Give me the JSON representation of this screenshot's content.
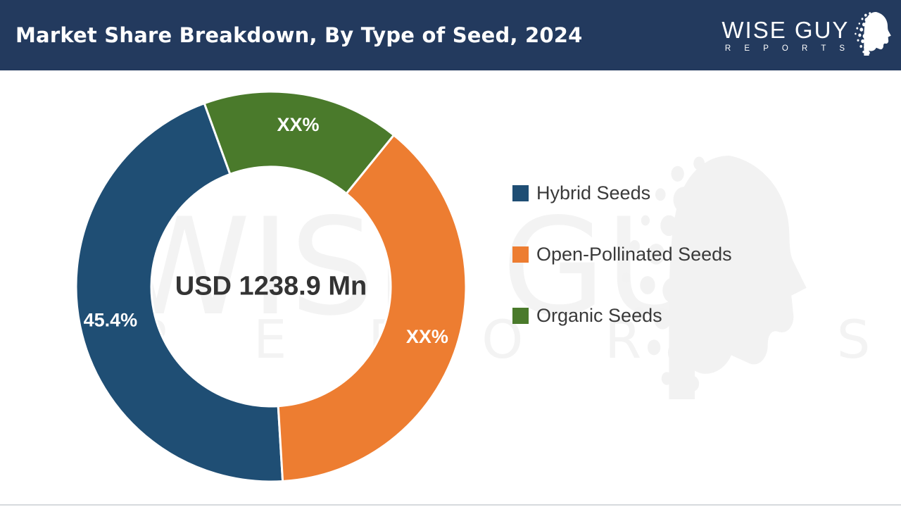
{
  "header": {
    "title": "Market Share Breakdown, By Type of Seed, 2024",
    "bg_color": "#233A5E",
    "logo": {
      "line1": "WISE GUY",
      "line2": "R E P O R T S"
    }
  },
  "chart_data": {
    "type": "pie",
    "subtype": "donut",
    "title": "Market Share Breakdown, By Type of Seed, 2024",
    "center_label": "USD 1238.9 Mn",
    "start_angle_deg": 110,
    "direction": "counterclockwise",
    "legend_position": "right",
    "slices": [
      {
        "label": "Hybrid Seeds",
        "value_pct": 45.4,
        "display_label": "45.4%",
        "color": "#1F4E74"
      },
      {
        "label": "Open-Pollinated Seeds",
        "value_pct": 38.2,
        "display_label": "XX%",
        "color": "#ED7D31"
      },
      {
        "label": "Organic Seeds",
        "value_pct": 16.4,
        "display_label": "XX%",
        "color": "#4A7A2B"
      }
    ]
  },
  "watermark": {
    "line1": "WISE GUY",
    "line2": "R E P O R T S"
  }
}
